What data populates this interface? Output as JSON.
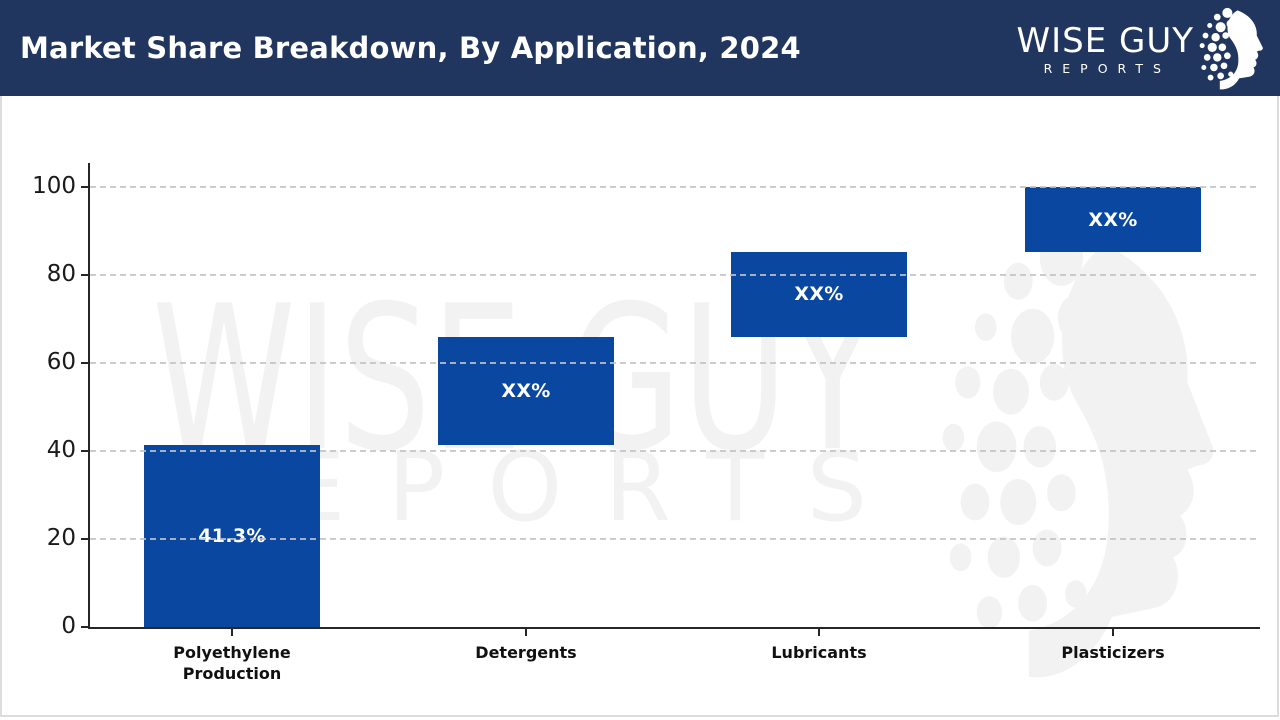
{
  "header": {
    "bg_color": "#21365e"
  },
  "logo": {
    "line1": "WISE GUY",
    "line2": "REPORTS"
  },
  "chart_data": {
    "type": "bar",
    "variant": "waterfall-floating-bars",
    "title": "Market Share Breakdown, By Application, 2024",
    "categories": [
      "Polyethylene Production",
      "Detergents",
      "Lubricants",
      "Plasticizers"
    ],
    "segments": [
      {
        "category": "Polyethylene Production",
        "start": 0,
        "end": 41.3,
        "label": "41.3%"
      },
      {
        "category": "Detergents",
        "start": 41.3,
        "end": 66,
        "label": "XX%"
      },
      {
        "category": "Lubricants",
        "start": 66,
        "end": 85.2,
        "label": "XX%"
      },
      {
        "category": "Plasticizers",
        "start": 85.2,
        "end": 100,
        "label": "XX%"
      }
    ],
    "xlabel": "",
    "ylabel": "",
    "yticks": [
      0,
      20,
      40,
      60,
      80,
      100
    ],
    "ylim": [
      0,
      105
    ],
    "grid": "horizontal-dashed",
    "grid_above_bars": true,
    "legend": false,
    "bar_color": "#0a47a1",
    "bar_label_color": "#ffffff",
    "axis_color": "#262626",
    "watermark_text": "WISE GUY REPORTS"
  }
}
